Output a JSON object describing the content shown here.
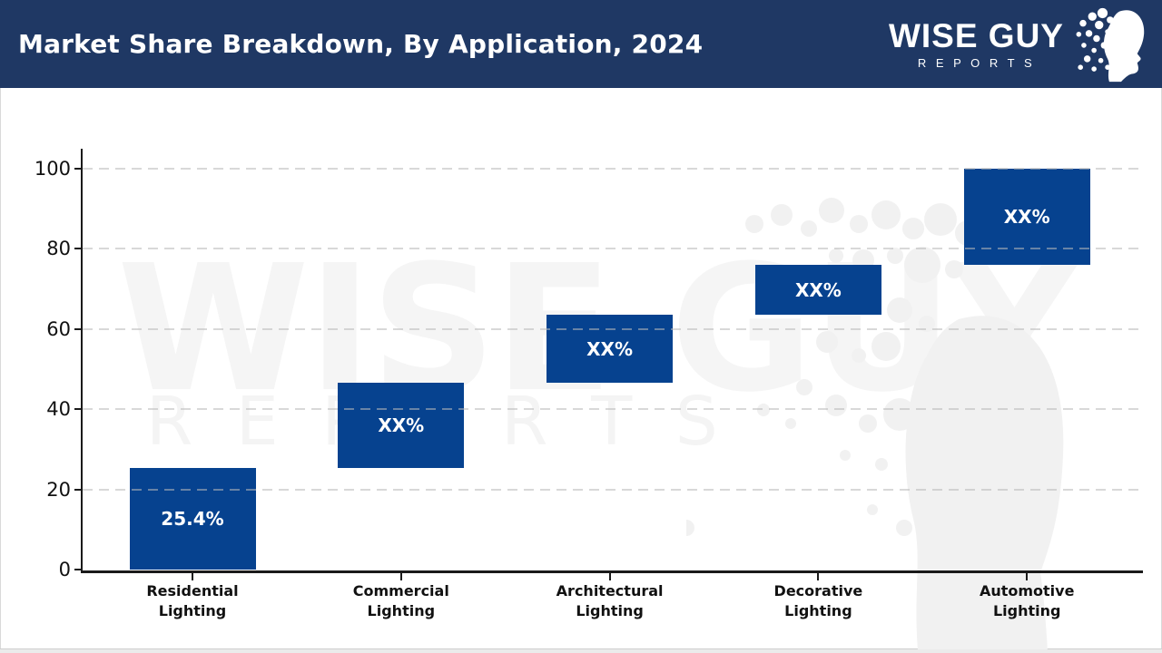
{
  "header": {
    "title": "Market Share Breakdown, By Application, 2024",
    "logo": {
      "brand": "WISE GUY",
      "sub": "R E P O R T S"
    }
  },
  "watermark": {
    "brand": "WISE GUY",
    "sub": "R E P O R T S"
  },
  "colors": {
    "header_bg": "#1f3864",
    "bar": "#06428f",
    "bar_label": "#ffffff",
    "axis": "#1a1a1a",
    "grid": "#dddddd",
    "text": "#111111"
  },
  "chart_data": {
    "type": "bar",
    "subtype": "waterfall",
    "title": "Market Share Breakdown, By Application, 2024",
    "xlabel": "",
    "ylabel": "",
    "ylim": [
      0,
      105
    ],
    "yticks": [
      0,
      20,
      40,
      60,
      80,
      100
    ],
    "grid": "horizontal-dashed",
    "legend": "none",
    "categories": [
      "Residential Lighting",
      "Commercial Lighting",
      "Architectural Lighting",
      "Decorative Lighting",
      "Automotive Lighting"
    ],
    "category_lines": [
      [
        "Residential",
        "Lighting"
      ],
      [
        "Commercial",
        "Lighting"
      ],
      [
        "Architectural",
        "Lighting"
      ],
      [
        "Decorative",
        "Lighting"
      ],
      [
        "Automotive",
        "Lighting"
      ]
    ],
    "bars": [
      {
        "category": "Residential Lighting",
        "start": 0,
        "end": 25.4,
        "label": "25.4%"
      },
      {
        "category": "Commercial Lighting",
        "start": 25.4,
        "end": 46.5,
        "label": "XX%"
      },
      {
        "category": "Architectural Lighting",
        "start": 46.5,
        "end": 63.5,
        "label": "XX%"
      },
      {
        "category": "Decorative Lighting",
        "start": 63.5,
        "end": 76.0,
        "label": "XX%"
      },
      {
        "category": "Automotive Lighting",
        "start": 76.0,
        "end": 100.0,
        "label": "XX%"
      }
    ]
  }
}
